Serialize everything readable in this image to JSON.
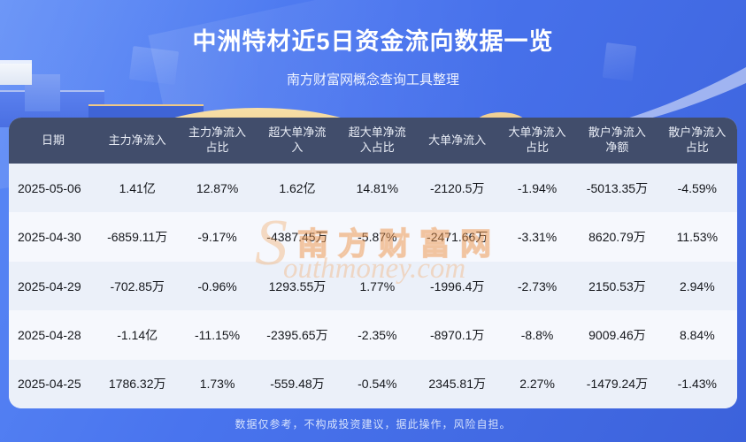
{
  "header": {
    "title": "中洲特材近5日资金流向数据一览",
    "subtitle": "南方财富网概念查询工具整理"
  },
  "table": {
    "display_columns": [
      "日期",
      "主力净流入",
      "主力净流入\n占比",
      "超大单净流\n入",
      "超大单净流\n入占比",
      "大单净流入",
      "大单净流入\n占比",
      "散户净流入\n净额",
      "散户净流入\n占比"
    ]
  },
  "chart_data": {
    "type": "table",
    "title": "中洲特材近5日资金流向数据一览",
    "columns": [
      "日期",
      "主力净流入",
      "主力净流入占比",
      "超大单净流入",
      "超大单净流入占比",
      "大单净流入",
      "大单净流入占比",
      "散户净流入净额",
      "散户净流入占比"
    ],
    "rows": [
      [
        "2025-05-06",
        "1.41亿",
        "12.87%",
        "1.62亿",
        "14.81%",
        "-2120.5万",
        "-1.94%",
        "-5013.35万",
        "-4.59%"
      ],
      [
        "2025-04-30",
        "-6859.11万",
        "-9.17%",
        "-4387.45万",
        "-5.87%",
        "-2471.66万",
        "-3.31%",
        "8620.79万",
        "11.53%"
      ],
      [
        "2025-04-29",
        "-702.85万",
        "-0.96%",
        "1293.55万",
        "1.77%",
        "-1996.4万",
        "-2.73%",
        "2150.53万",
        "2.94%"
      ],
      [
        "2025-04-28",
        "-1.14亿",
        "-11.15%",
        "-2395.65万",
        "-2.35%",
        "-8970.1万",
        "-8.8%",
        "9009.46万",
        "8.84%"
      ],
      [
        "2025-04-25",
        "1786.32万",
        "1.73%",
        "-559.48万",
        "-0.54%",
        "2345.81万",
        "2.27%",
        "-1479.24万",
        "-1.43%"
      ]
    ]
  },
  "watermark": {
    "en_initial": "S",
    "cn": "南方财富网",
    "en_rest": "outhmoney.com"
  },
  "footer": {
    "disclaimer": "数据仅参考，不构成投资建议，据此操作，风险自担。"
  },
  "colors": {
    "bg_top": "#5b8af6",
    "bg_bottom": "#3c62db",
    "table_header_bg": "#414d6b",
    "row_odd": "#ebf0f9",
    "row_even": "#f6f8fd",
    "accent_gold": "#e9ba6b",
    "watermark_orange": "#f3a660"
  }
}
